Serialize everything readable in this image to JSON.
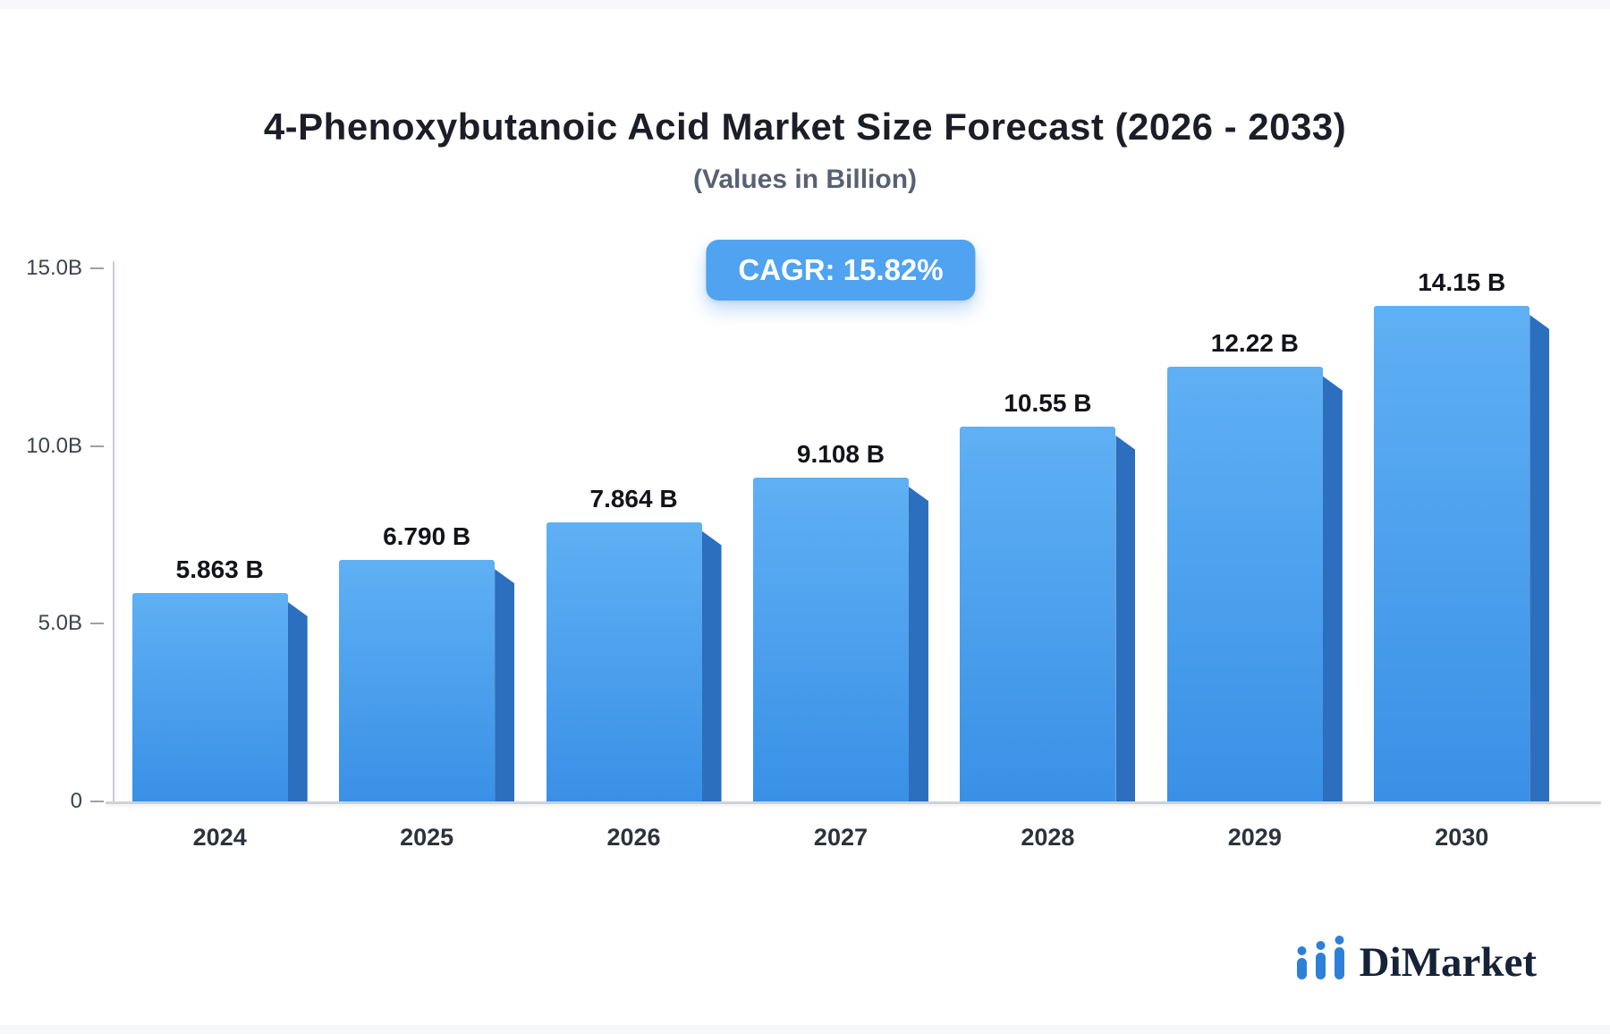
{
  "chart_data": {
    "type": "bar",
    "title": "4-Phenoxybutanoic Acid Market Size Forecast (2026 - 2033)",
    "subtitle": "(Values in Billion)",
    "badge_label": "CAGR: 15.82%",
    "categories": [
      "2024",
      "2025",
      "2026",
      "2027",
      "2028",
      "2029",
      "2030"
    ],
    "values": [
      5.863,
      6.79,
      7.864,
      9.108,
      10.55,
      12.22,
      14.15
    ],
    "value_labels": [
      "5.863 B",
      "6.790 B",
      "7.864 B",
      "9.108 B",
      "10.55 B",
      "12.22 B",
      "14.15 B"
    ],
    "xlabel": "",
    "ylabel": "",
    "ylim": [
      0,
      15
    ],
    "y_ticks": [
      {
        "value": 15,
        "label": "15.0B"
      },
      {
        "value": 10,
        "label": "10.0B"
      },
      {
        "value": 5,
        "label": "5.0B"
      },
      {
        "value": 0,
        "label": "0"
      }
    ],
    "grid": false,
    "legend": false,
    "colors": {
      "bar_top": "#5FB0F4",
      "bar_bottom": "#3990E6",
      "bar_side": "#2B6FBE",
      "badge_bg": "#4FA3F1",
      "badge_text": "#ffffff"
    }
  },
  "branding": {
    "logo_text": "DiMarket",
    "logo_icon": "bar-chart-dots-icon",
    "logo_icon_color": "#2E7FD9",
    "logo_text_color": "#152238"
  }
}
